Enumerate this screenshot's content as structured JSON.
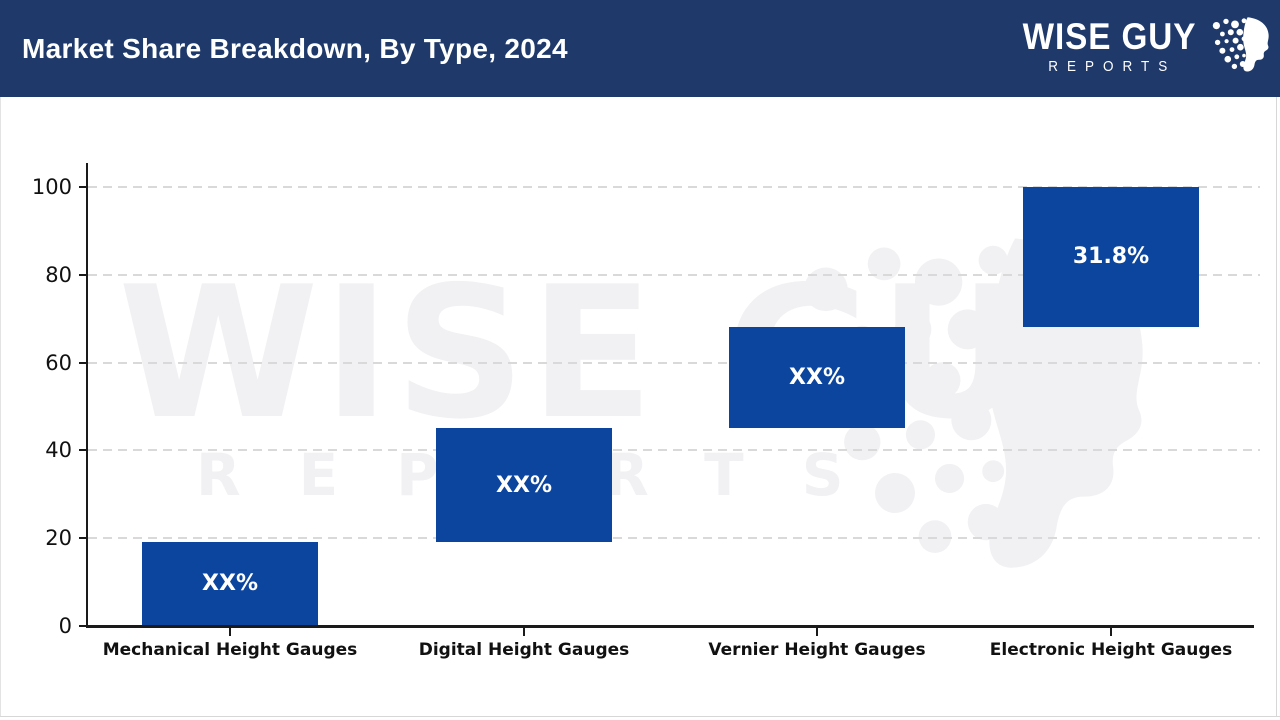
{
  "header": {
    "title": "Market Share Breakdown, By Type, 2024",
    "bg_color": "#1f3a6a",
    "logo": {
      "line1": "WISE GUY",
      "line2": "REPORTS"
    }
  },
  "watermark": {
    "line1": "WISE GUY",
    "line2": "REPORTS"
  },
  "chart_data": {
    "type": "bar",
    "subtype": "waterfall",
    "title": "Market Share Breakdown, By Type, 2024",
    "xlabel": "",
    "ylabel": "",
    "categories": [
      "Mechanical Height Gauges",
      "Digital Height Gauges",
      "Vernier Height Gauges",
      "Electronic Height Gauges"
    ],
    "series": [
      {
        "name": "Market share (%)",
        "starts": [
          0,
          19.2,
          45.0,
          68.2
        ],
        "values": [
          19.2,
          25.8,
          23.2,
          31.8
        ]
      }
    ],
    "bar_labels": [
      "XX%",
      "XX%",
      "XX%",
      "31.8%"
    ],
    "bar_color": "#0c459e",
    "yticks": [
      0,
      20,
      40,
      60,
      80,
      100
    ],
    "ylim": [
      0,
      105
    ],
    "grid": "horizontal-dashed",
    "grid_color": "#d9d9d9",
    "legend": "none"
  }
}
